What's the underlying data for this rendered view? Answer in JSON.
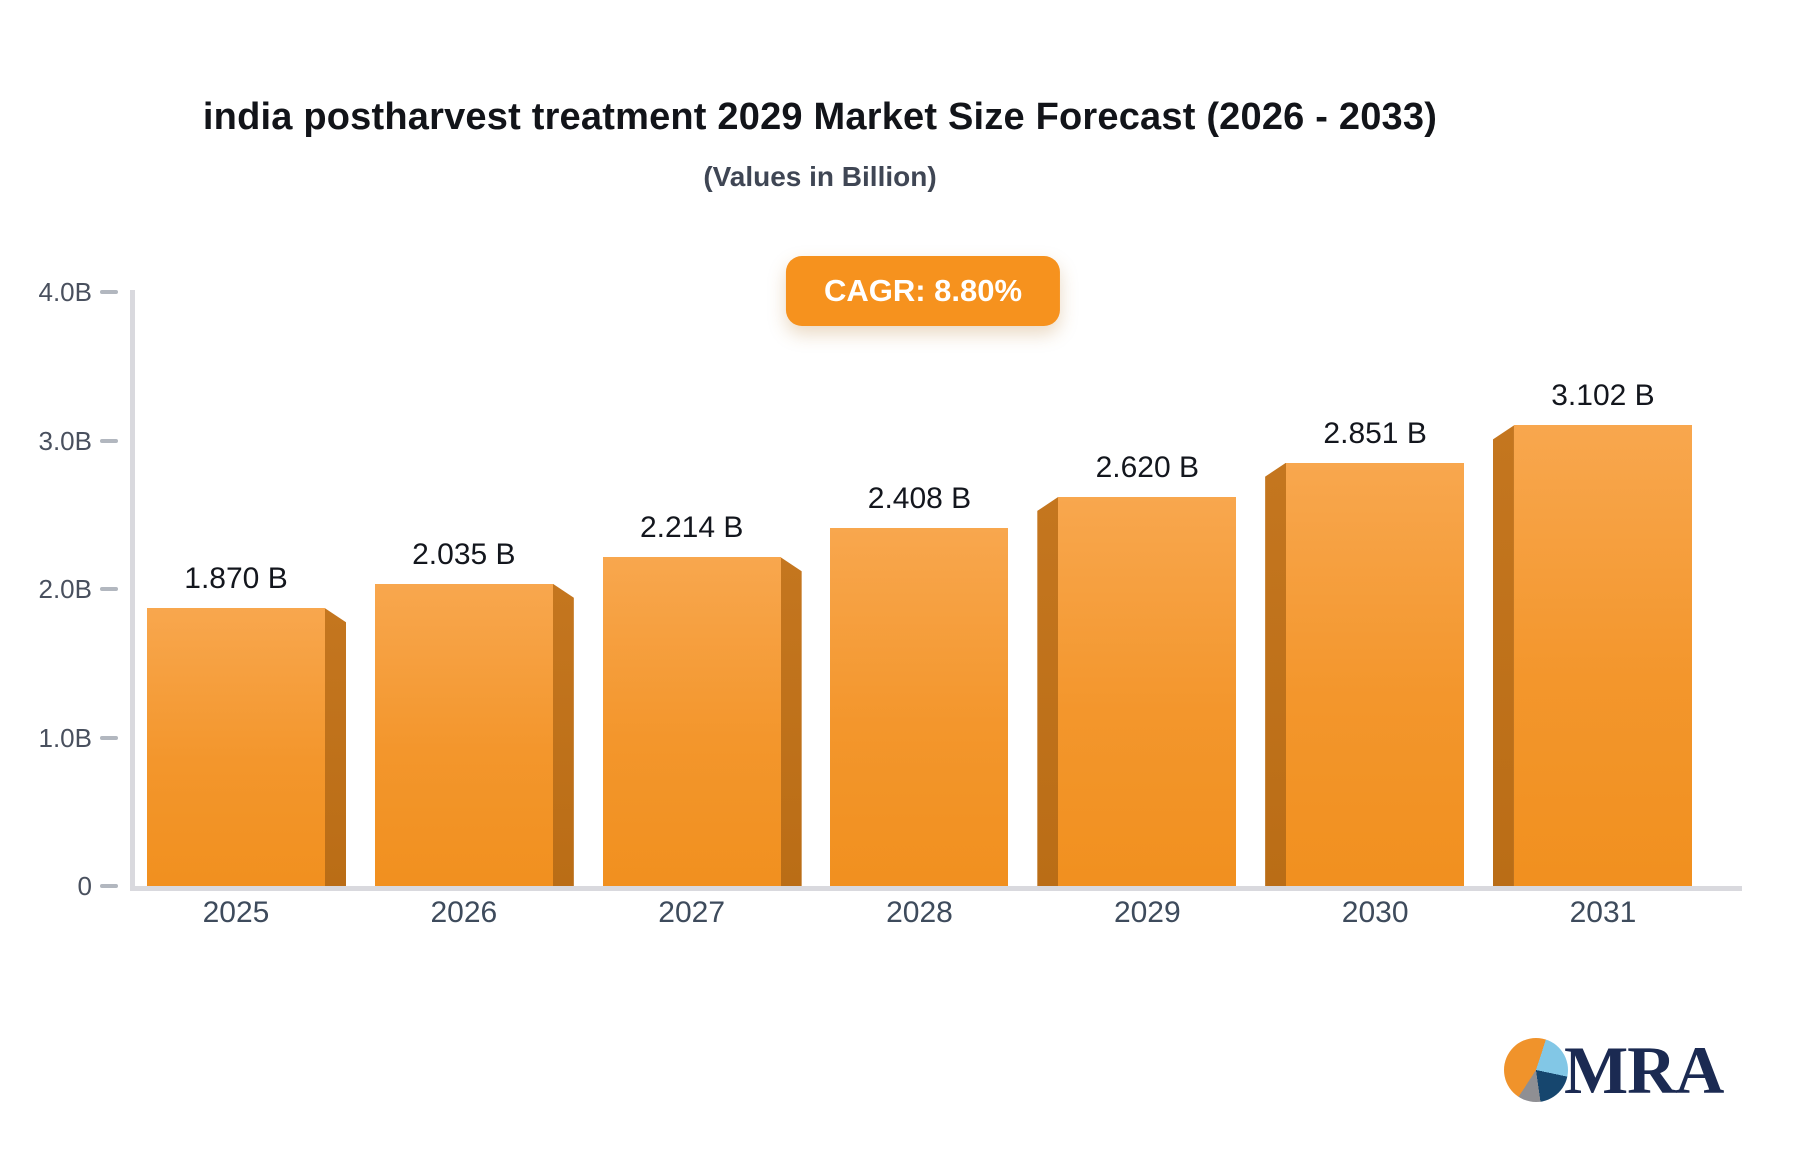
{
  "header": {
    "title": "india postharvest treatment 2029 Market Size Forecast (2026 - 2033)",
    "subtitle": "(Values in Billion)"
  },
  "badge": {
    "label": "CAGR: 8.80%"
  },
  "logo": {
    "text": "MRA",
    "icon": "pie-chart-icon"
  },
  "colors": {
    "accent_orange": "#f6921e",
    "bar_top": "#f8a74e",
    "bar_bottom": "#f1901f",
    "bar_side": "#c0711c",
    "axis_line": "#d9d9de",
    "tick_dash": "#b2b7bf",
    "y_label": "#49505e",
    "x_label": "#3e4b5c",
    "value_label": "#13161d",
    "logo_navy": "#1b2a52",
    "logo_light_blue": "#82c7e6",
    "logo_gray": "#8f8f93"
  },
  "chart_data": {
    "type": "bar",
    "title": "india postharvest treatment 2029 Market Size Forecast (2026 - 2033)",
    "subtitle": "(Values in Billion)",
    "categories": [
      "2025",
      "2026",
      "2027",
      "2028",
      "2029",
      "2030",
      "2031"
    ],
    "values": [
      1.87,
      2.035,
      2.214,
      2.408,
      2.62,
      2.851,
      3.102
    ],
    "value_labels": [
      "1.870 B",
      "2.035 B",
      "2.214 B",
      "2.408 B",
      "2.620 B",
      "2.851 B",
      "3.102 B"
    ],
    "unit": "Billion",
    "cagr": "8.80%",
    "xlabel": "",
    "ylabel": "",
    "ylim": [
      0,
      4.0
    ],
    "y_ticks": [
      {
        "value": 4.0,
        "label": "4.0B"
      },
      {
        "value": 3.0,
        "label": "3.0B"
      },
      {
        "value": 2.0,
        "label": "2.0B"
      },
      {
        "value": 1.0,
        "label": "1.0B"
      },
      {
        "value": 0.0,
        "label": "0"
      }
    ],
    "grid": false,
    "legend": "none",
    "bar_style": "3d-perspective-toward-center"
  }
}
